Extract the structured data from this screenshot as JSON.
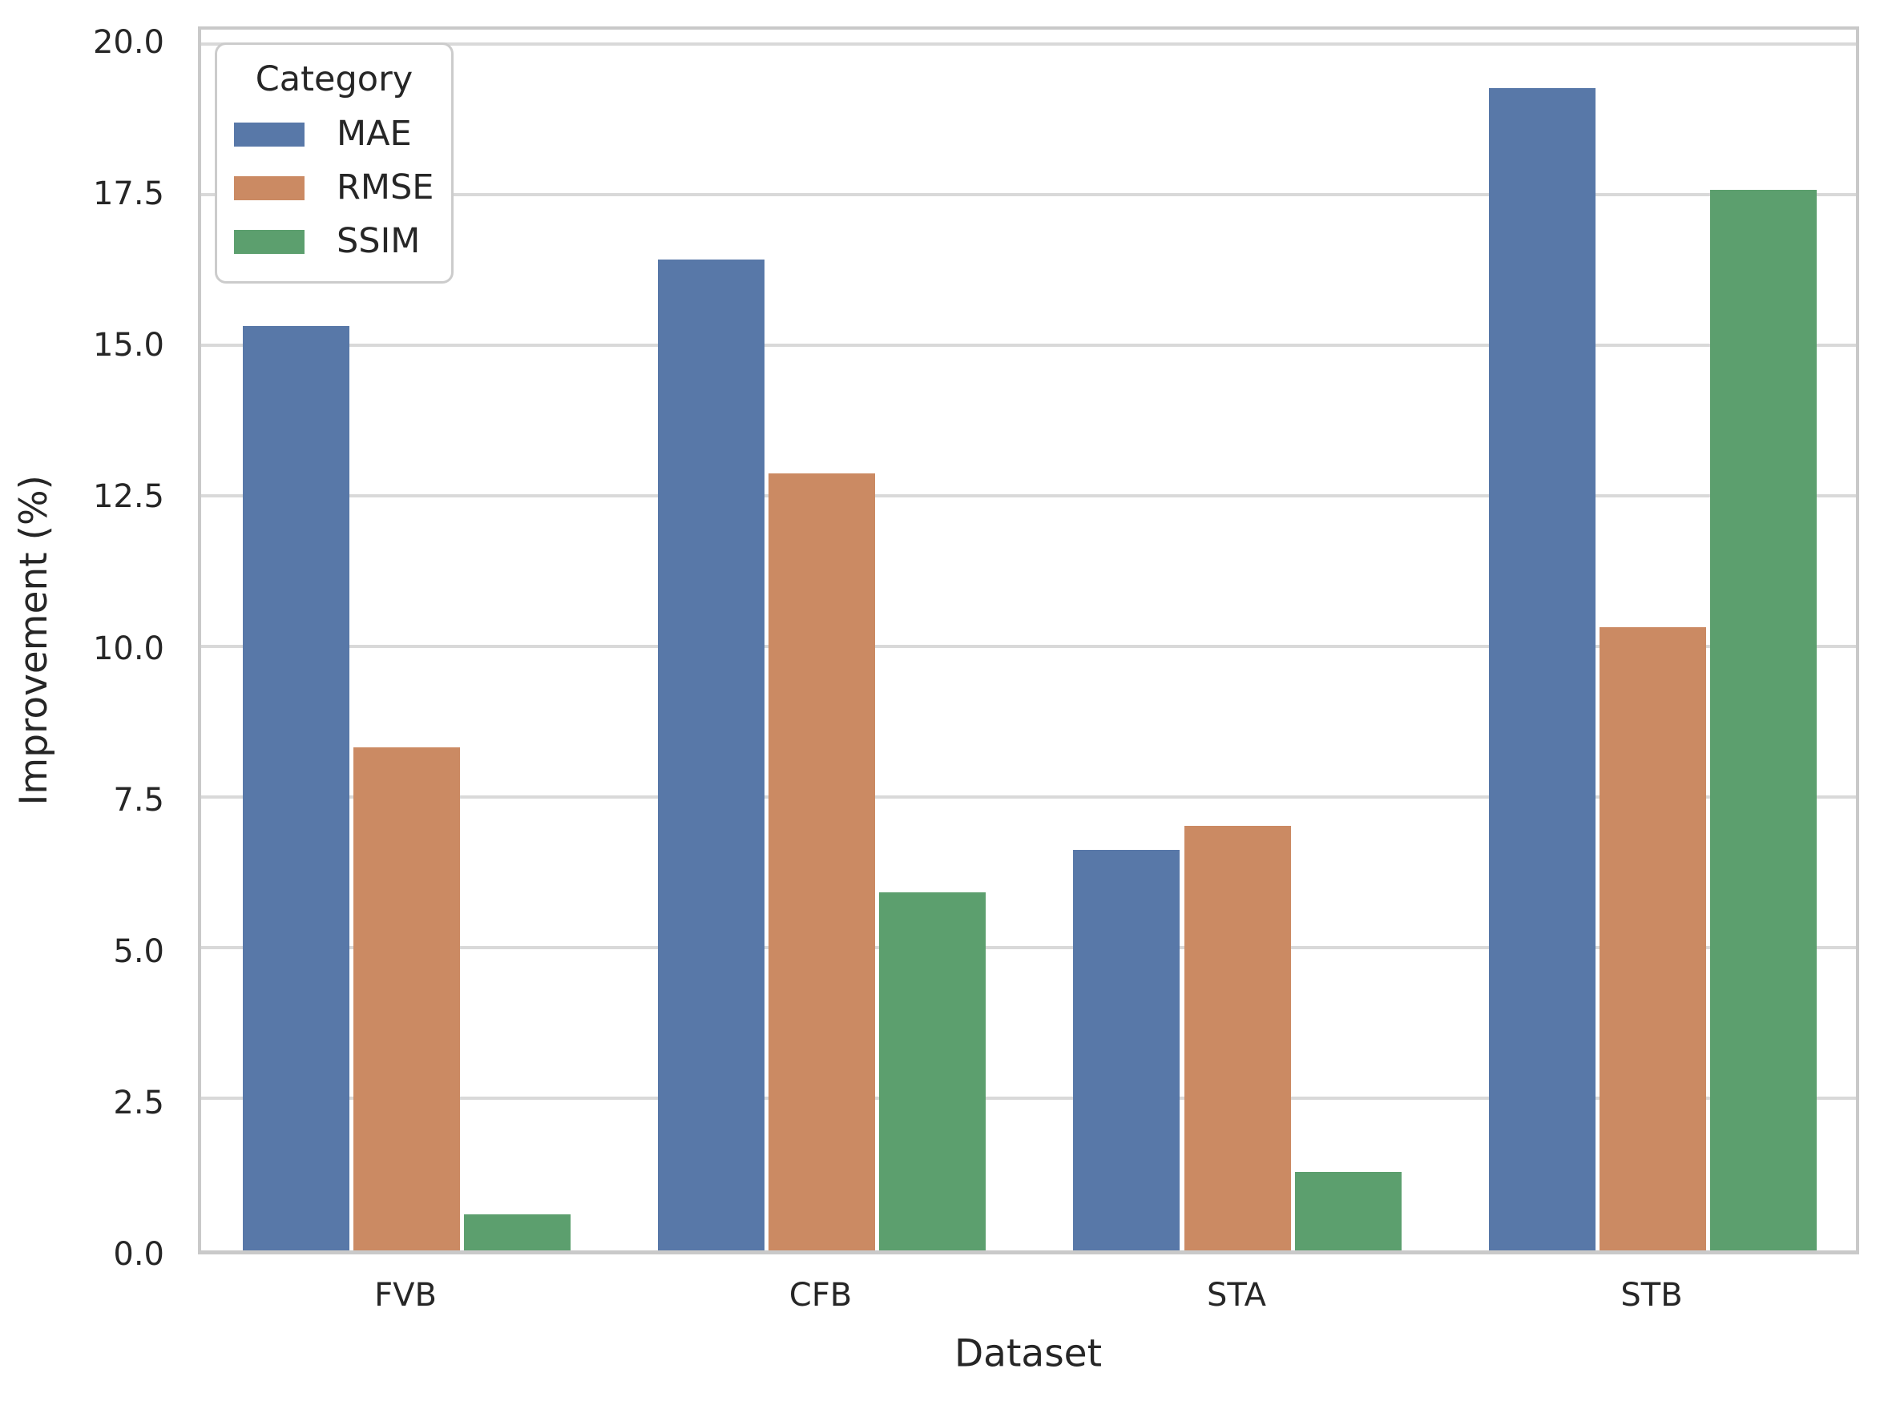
{
  "figure": {
    "background": "#ffffff",
    "text_color": "#262626",
    "grid_color": "#d9d9d9",
    "spine_color": "#c9c9c9"
  },
  "chart_data": {
    "type": "bar",
    "title": "",
    "xlabel": "Dataset",
    "ylabel": "Improvement (%)",
    "categories": [
      "FVB",
      "CFB",
      "STA",
      "STB"
    ],
    "series": [
      {
        "name": "MAE",
        "color": "#5878a8",
        "values": [
          15.35,
          16.45,
          6.65,
          19.3
        ]
      },
      {
        "name": "RMSE",
        "color": "#cb8a63",
        "values": [
          8.35,
          12.9,
          7.05,
          10.35
        ]
      },
      {
        "name": "SSIM",
        "color": "#5c9f6e",
        "values": [
          0.6,
          5.95,
          1.3,
          17.6
        ]
      }
    ],
    "ylim": [
      0,
      20
    ],
    "yticks": [
      0.0,
      2.5,
      5.0,
      7.5,
      10.0,
      12.5,
      15.0,
      17.5,
      20.0
    ],
    "ytick_labels": [
      "0.0",
      "2.5",
      "5.0",
      "7.5",
      "10.0",
      "12.5",
      "15.0",
      "17.5",
      "20.0"
    ],
    "grid": "horizontal",
    "group_width_fraction": 0.8,
    "legend": {
      "title": "Category",
      "position": "upper-left",
      "entries": [
        "MAE",
        "RMSE",
        "SSIM"
      ]
    }
  }
}
